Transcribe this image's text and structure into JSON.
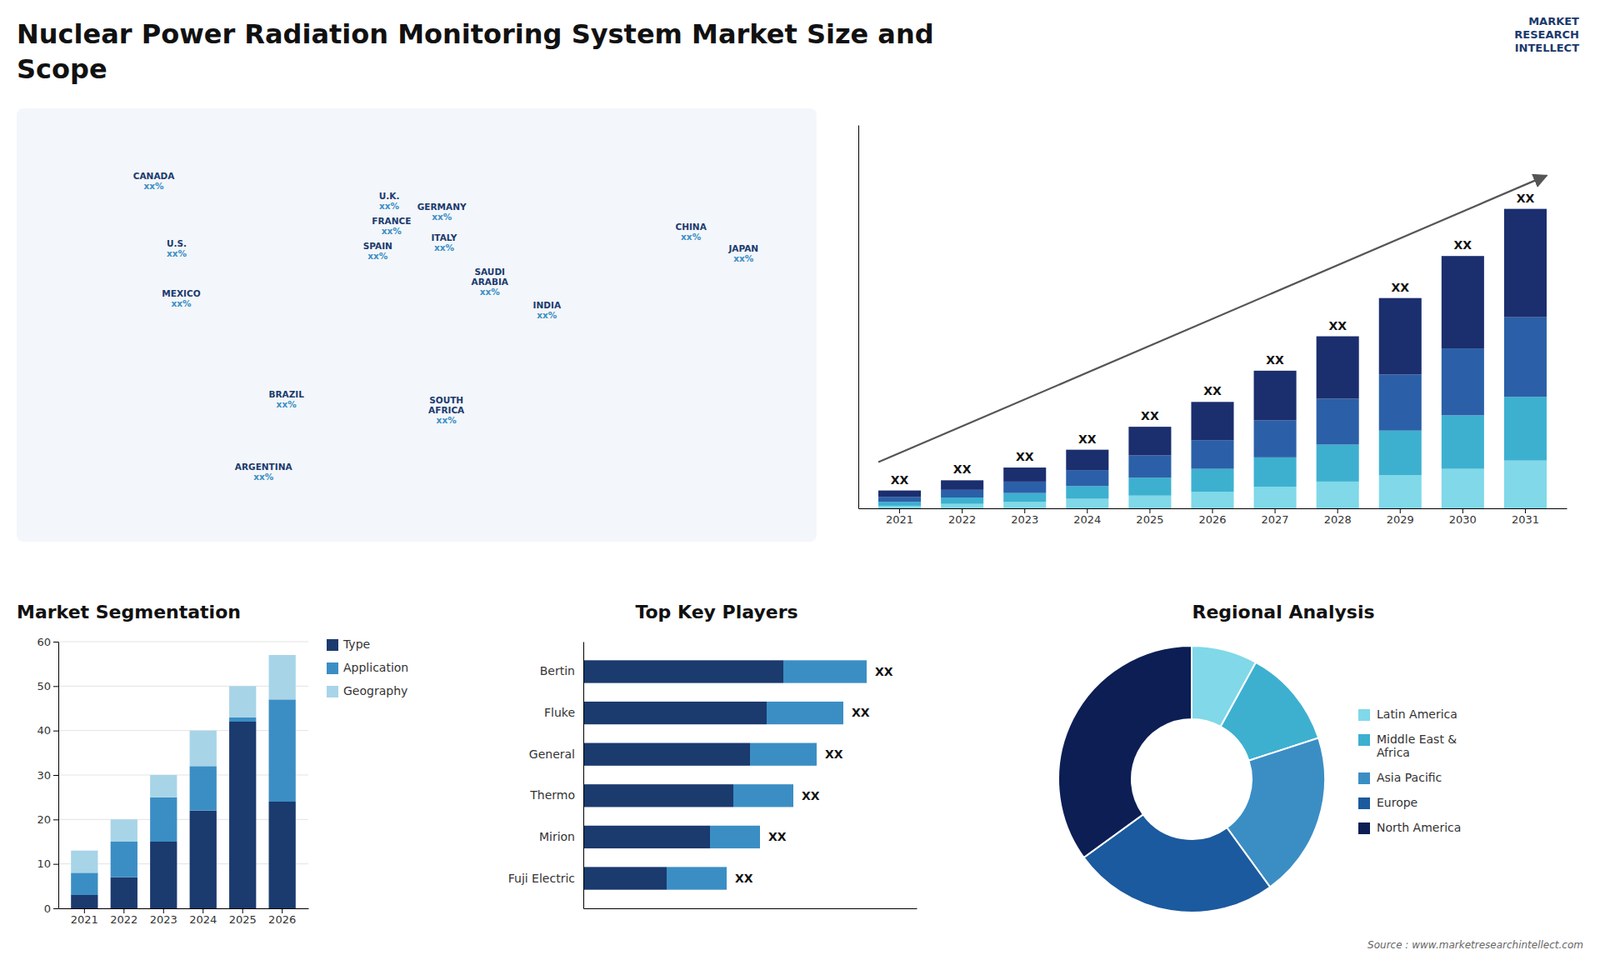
{
  "title": "Nuclear Power Radiation Monitoring System Market Size and\nScope",
  "annotations": [
    "MARKET\nRESEARCH\nINTELLECT",
    "Source : www.marketresearchintellect.com"
  ],
  "chart_data": [
    {
      "type": "map",
      "xlim": [
        -170,
        180
      ],
      "ylim": [
        -65,
        90
      ],
      "tick_labels": false,
      "annotations": [
        {
          "text": "CANADA",
          "label": "xx%",
          "x": -110,
          "y": 64
        },
        {
          "text": "U.S.",
          "label": "xx%",
          "x": -100,
          "y": 40
        },
        {
          "text": "MEXICO",
          "label": "xx%",
          "x": -98,
          "y": 22
        },
        {
          "text": "BRAZIL",
          "label": "xx%",
          "x": -52,
          "y": -14
        },
        {
          "text": "ARGENTINA",
          "label": "xx%",
          "x": -62,
          "y": -40
        },
        {
          "text": "U.K.",
          "label": "xx%",
          "x": -7,
          "y": 57
        },
        {
          "text": "FRANCE",
          "label": "xx%",
          "x": -6,
          "y": 48
        },
        {
          "text": "GERMANY",
          "label": "xx%",
          "x": 16,
          "y": 53
        },
        {
          "text": "SPAIN",
          "label": "xx%",
          "x": -12,
          "y": 39
        },
        {
          "text": "ITALY",
          "label": "xx%",
          "x": 17,
          "y": 42
        },
        {
          "text": "SAUDI\nARABIA",
          "label": "xx%",
          "x": 37,
          "y": 28
        },
        {
          "text": "SOUTH\nAFRICA",
          "label": "xx%",
          "x": 18,
          "y": -18
        },
        {
          "text": "INDIA",
          "label": "xx%",
          "x": 62,
          "y": 18
        },
        {
          "text": "CHINA",
          "label": "xx%",
          "x": 125,
          "y": 46
        },
        {
          "text": "JAPAN",
          "label": "xx%",
          "x": 148,
          "y": 38
        }
      ]
    },
    {
      "type": "bar",
      "stacked": true,
      "categories": [
        "2021",
        "2022",
        "2023",
        "2024",
        "2025",
        "2026",
        "2027",
        "2028",
        "2029",
        "2030",
        "2031"
      ],
      "series": [
        {
          "color": "#80d8e8",
          "values": [
            0.4,
            0.7,
            1.0,
            1.5,
            2.0,
            2.6,
            3.4,
            4.2,
            5.2,
            6.2,
            7.5
          ]
        },
        {
          "color": "#3db0d0",
          "values": [
            0.6,
            1.0,
            1.4,
            2.0,
            2.8,
            3.6,
            4.6,
            5.8,
            7.0,
            8.4,
            10.0
          ]
        },
        {
          "color": "#2b60a8",
          "values": [
            0.8,
            1.2,
            1.8,
            2.5,
            3.5,
            4.5,
            5.8,
            7.2,
            8.8,
            10.5,
            12.5
          ]
        },
        {
          "color": "#1b2e6e",
          "values": [
            1.0,
            1.5,
            2.2,
            3.2,
            4.5,
            6.0,
            7.8,
            9.8,
            12.0,
            14.5,
            17.0
          ]
        }
      ],
      "ylim": [
        0,
        60.16
      ],
      "tick_labels": "x",
      "grid": false,
      "annotations": [
        "XX",
        "XX",
        "XX",
        "XX",
        "XX",
        "XX",
        "XX",
        "XX",
        "XX",
        "XX",
        "XX"
      ]
    },
    {
      "type": "bar",
      "stacked": true,
      "title": "Market Segmentation",
      "categories": [
        "2021",
        "2022",
        "2023",
        "2024",
        "2025",
        "2026"
      ],
      "series": [
        {
          "name": "Type",
          "color": "#1b3a6e",
          "values": [
            3,
            7,
            15,
            22,
            42,
            24
          ]
        },
        {
          "name": "Application",
          "color": "#3b8ec4",
          "values": [
            5,
            8,
            10,
            10,
            1,
            23
          ]
        },
        {
          "name": "Geography",
          "color": "#a8d4e8",
          "values": [
            5,
            5,
            5,
            8,
            7,
            10
          ]
        }
      ],
      "ylim": [
        0,
        60
      ],
      "yticks": [
        0,
        10,
        20,
        30,
        40,
        50,
        60
      ],
      "grid": true,
      "legend": "right"
    },
    {
      "type": "bar",
      "orientation": "horizontal",
      "stacked": true,
      "title": "Top Key Players",
      "categories": [
        "Bertin",
        "Fluke",
        "General",
        "Thermo",
        "Mirion",
        "Fuji Electric"
      ],
      "series": [
        {
          "color": "#1b3a6e",
          "values": [
            0.6,
            0.55,
            0.5,
            0.45,
            0.38,
            0.25
          ]
        },
        {
          "color": "#3b8ec4",
          "values": [
            0.25,
            0.23,
            0.2,
            0.18,
            0.15,
            0.18
          ]
        }
      ],
      "xlim": [
        0,
        1
      ],
      "tick_labels": "y",
      "annotations": [
        "XX",
        "XX",
        "XX",
        "XX",
        "XX",
        "XX"
      ]
    },
    {
      "type": "pie",
      "title": "Regional Analysis",
      "categories": [
        "Latin America",
        "Middle East &\nAfrica",
        "Asia Pacific",
        "Europe",
        "North America"
      ],
      "values": [
        8,
        12,
        20,
        25,
        35
      ],
      "colors": [
        "#80d8e8",
        "#3db0d0",
        "#3b8ec4",
        "#1b5a9e",
        "#0d1e55"
      ],
      "legend": "right"
    }
  ]
}
